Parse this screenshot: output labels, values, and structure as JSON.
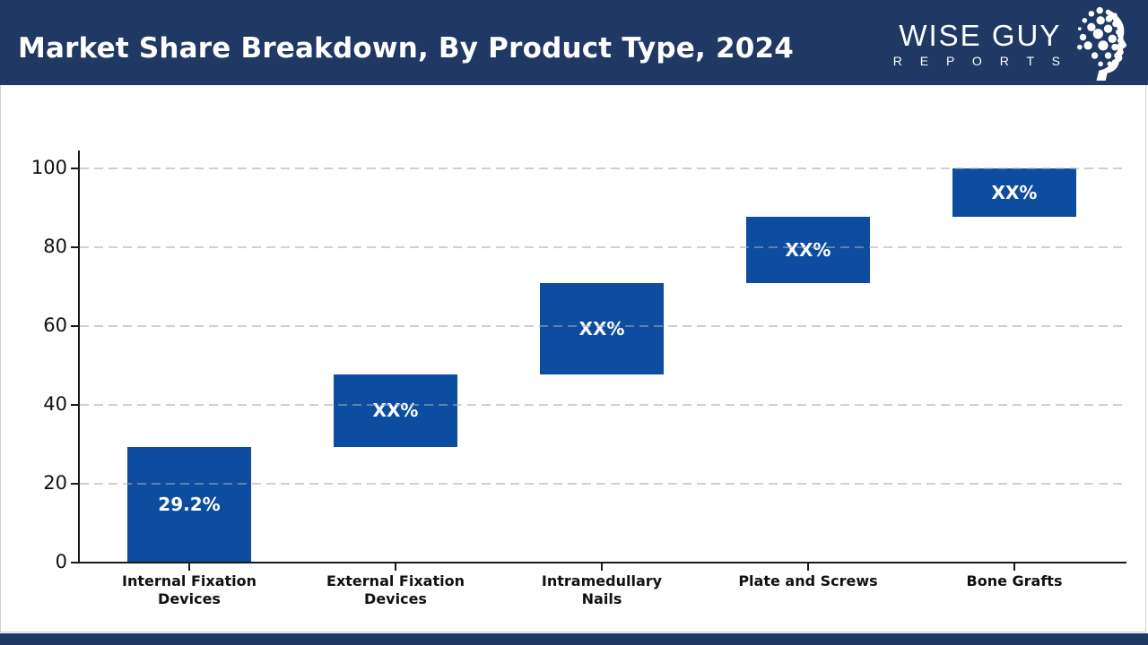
{
  "header": {
    "title": "Market Share Breakdown, By Product Type, 2024",
    "logo": {
      "line1": "WISE GUY",
      "line2": "R E P O R T S"
    }
  },
  "watermark": {
    "line1": "WISE GUY",
    "line2": "R E P O R T S"
  },
  "chart_data": {
    "type": "bar",
    "subtype": "waterfall-floating-bars",
    "title": "Market Share Breakdown, By Product Type, 2024",
    "categories": [
      "Internal Fixation Devices",
      "External Fixation Devices",
      "Intramedullary Nails",
      "Plate and Screws",
      "Bone Grafts"
    ],
    "series": [
      {
        "name": "Market Share (%)",
        "segments": [
          {
            "start": 0,
            "end": 29.2,
            "label": "29.2%"
          },
          {
            "start": 29.2,
            "end": 47.7,
            "label": "XX%"
          },
          {
            "start": 47.7,
            "end": 70.9,
            "label": "XX%"
          },
          {
            "start": 70.9,
            "end": 87.7,
            "label": "XX%"
          },
          {
            "start": 87.7,
            "end": 100,
            "label": "XX%"
          }
        ]
      }
    ],
    "xlabel": "",
    "ylabel": "",
    "ylim": [
      0,
      104
    ],
    "yticks": [
      0,
      20,
      40,
      60,
      80,
      100
    ],
    "grid": "horizontal-dashed",
    "legend": "none"
  },
  "colors": {
    "header_bg": "#1f3864",
    "footer_bg": "#1f3864",
    "bar": "#0c4da0",
    "bar_label": "#ffffff",
    "grid": "#d9d9d9",
    "axis": "#1a1a1a",
    "text": "#111111",
    "watermark": "#f2f2f5"
  }
}
